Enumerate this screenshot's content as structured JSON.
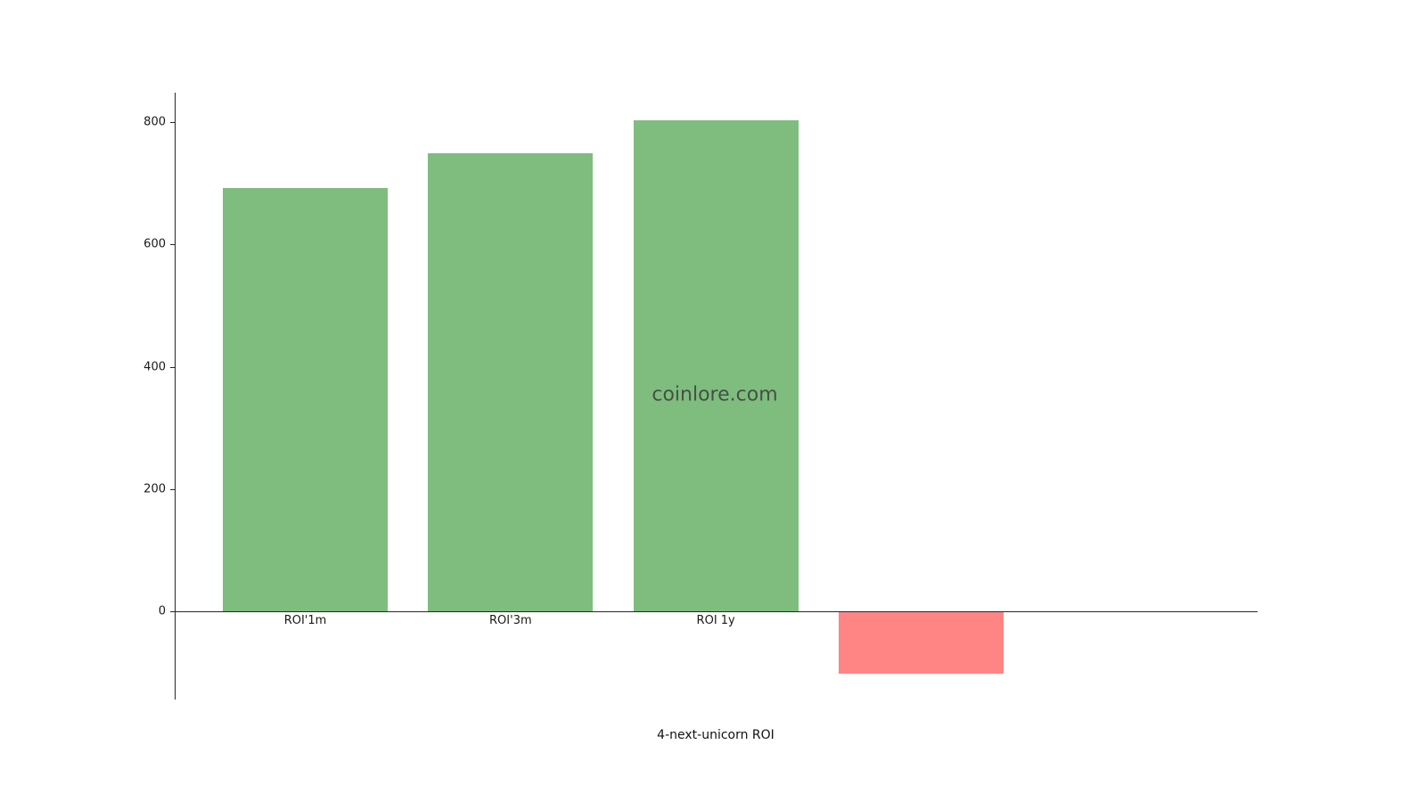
{
  "chart_data": {
    "type": "bar",
    "title": "4-next-unicorn ROI",
    "watermark": "coinlore.com",
    "categories": [
      "ROI'1m",
      "ROI'3m",
      "ROI 1y",
      ""
    ],
    "values": [
      692,
      750,
      803,
      -100
    ],
    "bar_colors": [
      "#7ebd7e",
      "#7ebd7e",
      "#7ebd7e",
      "#ff8585"
    ],
    "yticks": [
      0,
      200,
      400,
      600,
      800
    ],
    "ylim": [
      -144,
      848
    ],
    "xlabel": "",
    "ylabel": "",
    "grid": false,
    "legend_position": "none",
    "colors": {
      "positive_bar": "#7ebd7e",
      "negative_bar": "#ff8585",
      "axis": "#262626",
      "tick_text": "#1a1a1a",
      "watermark_text": "#3d3d3d"
    }
  }
}
